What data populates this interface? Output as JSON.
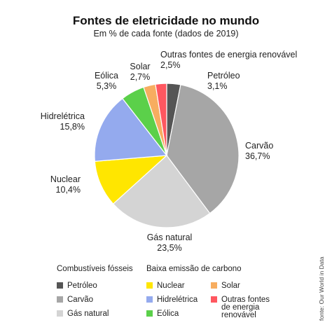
{
  "chart_data": {
    "type": "pie",
    "title": "Fontes de eletricidade no mundo",
    "subtitle": "Em % de cada fonte (dados de 2019)",
    "unit": "%",
    "slices": [
      {
        "name": "Petróleo",
        "label": "Petróleo",
        "value": 3.1,
        "value_label": "3,1%",
        "color": "#555555"
      },
      {
        "name": "Carvão",
        "label": "Carvão",
        "value": 36.7,
        "value_label": "36,7%",
        "color": "#a6a6a6"
      },
      {
        "name": "Gás natural",
        "label": "Gás natural",
        "value": 23.5,
        "value_label": "23,5%",
        "color": "#d4d4d4"
      },
      {
        "name": "Nuclear",
        "label": "Nuclear",
        "value": 10.4,
        "value_label": "10,4%",
        "color": "#ffe600"
      },
      {
        "name": "Hidrelétrica",
        "label": "Hidrelétrica",
        "value": 15.8,
        "value_label": "15,8%",
        "color": "#94aaee"
      },
      {
        "name": "Eólica",
        "label": "Eólica",
        "value": 5.3,
        "value_label": "5,3%",
        "color": "#5bd04a"
      },
      {
        "name": "Solar",
        "label": "Solar",
        "value": 2.7,
        "value_label": "2,7%",
        "color": "#f7ad60"
      },
      {
        "name": "Outras fontes de energia renovável",
        "label": "Outras fontes de energia renovável",
        "value": 2.5,
        "value_label": "2,5%",
        "color": "#ff5760"
      }
    ],
    "legend_groups": [
      {
        "heading": "Combustíveis fósseis",
        "items": [
          {
            "label": "Petróleo",
            "color": "#555555"
          },
          {
            "label": "Carvão",
            "color": "#a6a6a6"
          },
          {
            "label": "Gás natural",
            "color": "#d4d4d4"
          }
        ]
      },
      {
        "heading": "Baixa emissão de carbono",
        "items": [
          {
            "label": "Nuclear",
            "color": "#ffe600"
          },
          {
            "label": "Hidrelétrica",
            "color": "#94aaee"
          },
          {
            "label": "Eólica",
            "color": "#5bd04a"
          },
          {
            "label": "Solar",
            "color": "#f7ad60"
          },
          {
            "label": "Outras fontes de energia renovável",
            "label_lines": [
              "Outras fontes",
              "de energia",
              "renovável"
            ],
            "color": "#ff5760"
          }
        ]
      }
    ],
    "source": "fonte: Our World in Data"
  }
}
